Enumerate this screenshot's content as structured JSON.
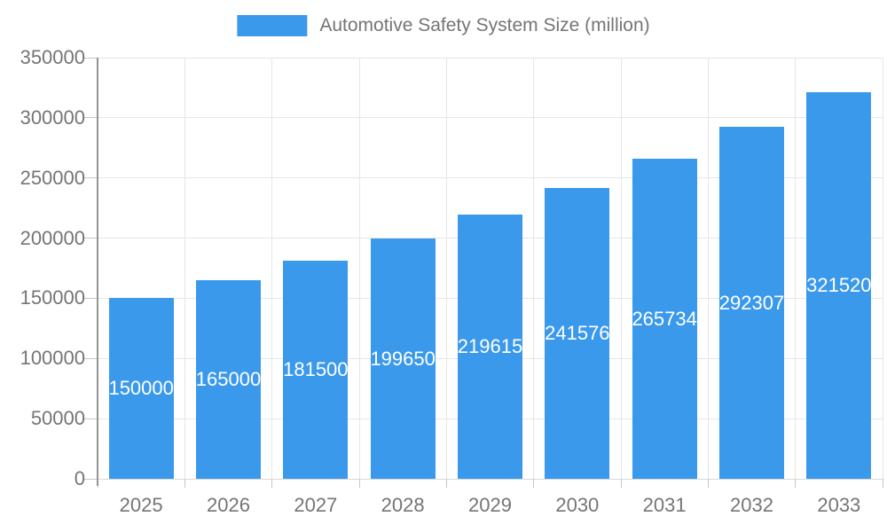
{
  "chart_data": {
    "type": "bar",
    "title": "Automotive Safety System Size (million)",
    "categories": [
      "2025",
      "2026",
      "2027",
      "2028",
      "2029",
      "2030",
      "2031",
      "2032",
      "2033"
    ],
    "values": [
      150000,
      165000,
      181500,
      199650,
      219615,
      241576,
      265734,
      292307,
      321520
    ],
    "bar_labels": [
      "150000",
      "165000",
      "181500",
      "199650",
      "219615",
      "241576",
      "265734",
      "292307",
      "321520"
    ],
    "xlabel": "",
    "ylabel": "",
    "ylim": [
      0,
      350000
    ],
    "ytick_step": 50000,
    "ytick_labels": [
      "0",
      "50000",
      "100000",
      "150000",
      "200000",
      "250000",
      "300000",
      "350000"
    ],
    "grid": true,
    "legend_position": "top",
    "colors": {
      "bar": "#3b99ec",
      "axis_text": "#757575",
      "gridline": "#e6e6e6",
      "axis_line": "#949494",
      "bar_label": "#ffffff"
    }
  }
}
